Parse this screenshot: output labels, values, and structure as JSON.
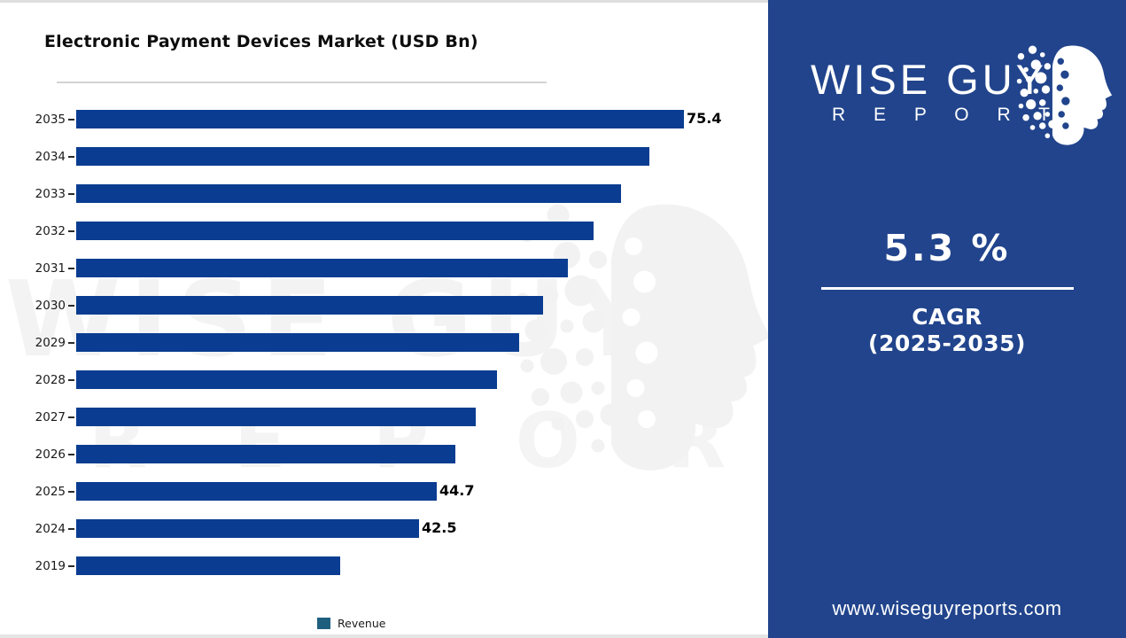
{
  "chart_data": {
    "type": "bar",
    "orientation": "horizontal",
    "title": "Electronic Payment Devices Market (USD Bn)",
    "unit": "USD Bn",
    "categories": [
      "2035",
      "2034",
      "2033",
      "2032",
      "2031",
      "2030",
      "2029",
      "2028",
      "2027",
      "2026",
      "2025",
      "2024",
      "2019"
    ],
    "values": [
      75.4,
      71.1,
      67.6,
      64.2,
      61.0,
      57.9,
      55.0,
      52.2,
      49.6,
      47.0,
      44.7,
      42.5,
      32.8
    ],
    "data_labels": [
      "75.4",
      "",
      "",
      "",
      "",
      "",
      "",
      "",
      "",
      "",
      "44.7",
      "42.5",
      ""
    ],
    "xlim": [
      0,
      80
    ],
    "grid": false,
    "bar_color": "#0a3d91",
    "legend": {
      "position": "bottom",
      "entries": [
        {
          "label": "Revenue",
          "color": "#1f5f7e"
        }
      ]
    }
  },
  "watermark": {
    "line1": "WISE GUY",
    "line2": "R E P O R T S"
  },
  "brand_panel": {
    "bg_color": "#21448c",
    "logo": {
      "line1": "WISE GUY",
      "line2": "R E P O R T S",
      "mark": "dotted-head-profile"
    },
    "cagr": {
      "value": "5.3 %",
      "label_line1": "CAGR",
      "label_line2": "(2025-2035)"
    },
    "website": "www.wiseguyreports.com"
  }
}
